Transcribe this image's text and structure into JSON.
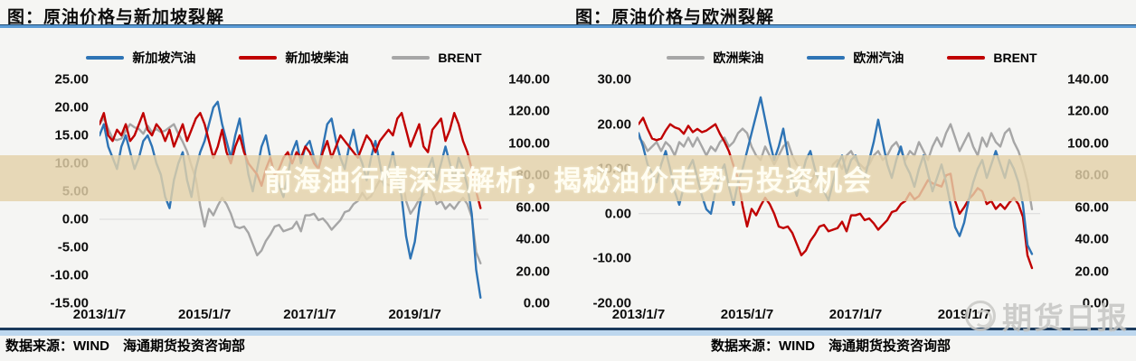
{
  "overlay": {
    "headline": "前海油行情深度解析，揭秘油价走势与投资机会",
    "headline_text_color": "#fffdf2",
    "band_color": "rgba(228,210,170,0.82)",
    "brand": "期货日报",
    "brand_color": "#c6c6c3"
  },
  "colors": {
    "series_blue": "#2e74b5",
    "series_red": "#c00000",
    "series_gray": "#a6a6a6",
    "rule_navy": "#1b3a5c",
    "rule_light_blue": "#bdd7ee"
  },
  "chart_data": [
    {
      "type": "line",
      "title": "图：原油价格与新加坡裂解",
      "source": "数据来源：WIND　海通期货投资咨询部",
      "x_tick_labels": [
        "2013/1/7",
        "2015/1/7",
        "2017/1/7",
        "2019/1/7"
      ],
      "x_tick_years": [
        2013.0,
        2015.0,
        2017.0,
        2019.0
      ],
      "x_range_years": [
        2013.0,
        2020.4
      ],
      "x_start_year": 2013.0,
      "x_step_months": 1,
      "grid_zero_line": true,
      "legend_position": "top-center",
      "left_axis": {
        "ticks": [
          "25.00",
          "20.00",
          "15.00",
          "10.00",
          "5.00",
          "0.00",
          "-5.00",
          "-10.00",
          "-15.00"
        ],
        "range": [
          25,
          -15
        ]
      },
      "right_axis": {
        "ticks": [
          "140.00",
          "120.00",
          "100.00",
          "80.00",
          "60.00",
          "40.00",
          "20.00",
          "0.00"
        ],
        "range": [
          140,
          0
        ]
      },
      "legend": [
        {
          "name": "新加坡汽油",
          "color": "#2e74b5"
        },
        {
          "name": "新加坡柴油",
          "color": "#c00000"
        },
        {
          "name": "BRENT",
          "color": "#a6a6a6"
        }
      ],
      "series": [
        {
          "name": "BRENT",
          "axis": "right",
          "color": "#a6a6a6",
          "values": [
            112,
            116,
            109,
            103,
            102,
            103,
            108,
            112,
            110,
            109,
            106,
            111,
            107,
            109,
            107,
            108,
            110,
            112,
            106,
            101,
            95,
            86,
            78,
            61,
            48,
            59,
            55,
            61,
            66,
            62,
            56,
            48,
            47,
            48,
            44,
            37,
            30,
            33,
            39,
            43,
            48,
            49,
            45,
            46,
            47,
            51,
            45,
            55,
            55,
            56,
            52,
            53,
            50,
            46,
            49,
            52,
            57,
            58,
            62,
            64,
            69,
            65,
            67,
            72,
            77,
            75,
            74,
            73,
            80,
            81,
            64,
            56,
            60,
            65,
            68,
            72,
            70,
            62,
            64,
            59,
            62,
            59,
            63,
            66,
            62,
            54,
            32,
            25
          ]
        },
        {
          "name": "新加坡汽油",
          "axis": "left",
          "color": "#2e74b5",
          "values": [
            15,
            17,
            13,
            11,
            9,
            13,
            15,
            12,
            9,
            11,
            14,
            15,
            13,
            10,
            8,
            4,
            2,
            7,
            10,
            12,
            7,
            4,
            9,
            12,
            14,
            17,
            20,
            21,
            17,
            14,
            11,
            15,
            18,
            13,
            8,
            5,
            9,
            13,
            15,
            11,
            8,
            6,
            4,
            8,
            12,
            14,
            10,
            13,
            14,
            11,
            9,
            13,
            17,
            18,
            14,
            11,
            9,
            13,
            16,
            12,
            10,
            7,
            11,
            14,
            10,
            6,
            9,
            12,
            8,
            4,
            -3,
            -7,
            -4,
            2,
            6,
            9,
            11,
            7,
            10,
            13,
            10,
            7,
            11,
            9,
            6,
            1,
            -9,
            -14
          ]
        },
        {
          "name": "新加坡柴油",
          "axis": "left",
          "color": "#c00000",
          "values": [
            17,
            19,
            15,
            14,
            16,
            15,
            17,
            14,
            15,
            17,
            19,
            16,
            15,
            17,
            16,
            14,
            16,
            13,
            15,
            17,
            14,
            16,
            18,
            19,
            17,
            14,
            11,
            13,
            16,
            12,
            10,
            13,
            15,
            12,
            10,
            9,
            8,
            6,
            9,
            11,
            8,
            9,
            11,
            12,
            10,
            12,
            11,
            13,
            12,
            10,
            9,
            12,
            14,
            11,
            13,
            15,
            14,
            13,
            12,
            11,
            13,
            15,
            14,
            12,
            14,
            15,
            16,
            15,
            18,
            19,
            16,
            13,
            15,
            17,
            13,
            12,
            16,
            17,
            18,
            14,
            16,
            19,
            17,
            14,
            12,
            9,
            5,
            2
          ]
        }
      ]
    },
    {
      "type": "line",
      "title": "图：原油价格与欧洲裂解",
      "source": "数据来源：WIND　海通期货投资咨询部",
      "x_tick_labels": [
        "2013/1/7",
        "2015/1/7",
        "2017/1/7",
        "2019/1/7"
      ],
      "x_tick_years": [
        2013.0,
        2015.0,
        2017.0,
        2019.0
      ],
      "x_range_years": [
        2013.0,
        2020.4
      ],
      "x_start_year": 2013.0,
      "x_step_months": 1,
      "grid_zero_line": true,
      "legend_position": "top-center",
      "left_axis": {
        "ticks": [
          "30.00",
          "20.00",
          "10.00",
          "0.00",
          "-10.00",
          "-20.00"
        ],
        "range": [
          30,
          -20
        ]
      },
      "right_axis": {
        "ticks": [
          "140.00",
          "120.00",
          "100.00",
          "80.00",
          "60.00",
          "40.00",
          "20.00",
          "0.00"
        ],
        "range": [
          140,
          0
        ]
      },
      "legend": [
        {
          "name": "欧洲柴油",
          "color": "#a6a6a6"
        },
        {
          "name": "欧洲汽油",
          "color": "#2e74b5"
        },
        {
          "name": "BRENT",
          "color": "#c00000"
        }
      ],
      "series": [
        {
          "name": "欧洲柴油",
          "axis": "left",
          "color": "#a6a6a6",
          "values": [
            17,
            16,
            14,
            15,
            16,
            14,
            16,
            15,
            13,
            16,
            15,
            17,
            15,
            17,
            15,
            13,
            15,
            14,
            16,
            17,
            15,
            16,
            18,
            19,
            18,
            15,
            13,
            12,
            15,
            13,
            11,
            13,
            15,
            16,
            13,
            11,
            10,
            8,
            7,
            9,
            8,
            10,
            8,
            11,
            12,
            10,
            13,
            14,
            12,
            11,
            10,
            11,
            13,
            14,
            12,
            13,
            15,
            16,
            14,
            12,
            14,
            13,
            16,
            14,
            12,
            15,
            17,
            15,
            18,
            20,
            17,
            14,
            16,
            18,
            15,
            13,
            17,
            15,
            18,
            16,
            15,
            18,
            19,
            16,
            14,
            11,
            7,
            1
          ]
        },
        {
          "name": "BRENT",
          "axis": "right",
          "color": "#c00000",
          "values": [
            112,
            116,
            109,
            103,
            102,
            103,
            108,
            112,
            110,
            109,
            106,
            111,
            107,
            109,
            107,
            108,
            110,
            112,
            106,
            101,
            95,
            86,
            78,
            61,
            48,
            59,
            55,
            61,
            66,
            62,
            56,
            48,
            47,
            48,
            44,
            37,
            30,
            33,
            39,
            43,
            48,
            49,
            45,
            46,
            47,
            51,
            45,
            55,
            55,
            56,
            52,
            53,
            50,
            46,
            49,
            52,
            57,
            58,
            62,
            64,
            69,
            65,
            67,
            72,
            77,
            75,
            74,
            73,
            80,
            81,
            64,
            56,
            60,
            65,
            68,
            72,
            70,
            62,
            64,
            59,
            62,
            59,
            63,
            66,
            62,
            54,
            30,
            22
          ]
        },
        {
          "name": "欧洲汽油",
          "axis": "left",
          "color": "#2e74b5",
          "values": [
            18,
            15,
            11,
            9,
            7,
            11,
            14,
            10,
            5,
            2,
            6,
            10,
            12,
            8,
            4,
            1,
            0,
            5,
            9,
            11,
            6,
            2,
            7,
            10,
            14,
            18,
            22,
            26,
            21,
            16,
            12,
            15,
            19,
            13,
            7,
            4,
            8,
            12,
            14,
            10,
            7,
            5,
            3,
            7,
            11,
            13,
            9,
            12,
            13,
            10,
            8,
            12,
            16,
            21,
            16,
            11,
            8,
            12,
            15,
            11,
            9,
            6,
            10,
            13,
            9,
            5,
            8,
            11,
            7,
            2,
            -3,
            -5,
            -2,
            3,
            7,
            10,
            12,
            8,
            11,
            14,
            11,
            8,
            12,
            10,
            7,
            2,
            -7,
            -9
          ]
        }
      ]
    }
  ]
}
